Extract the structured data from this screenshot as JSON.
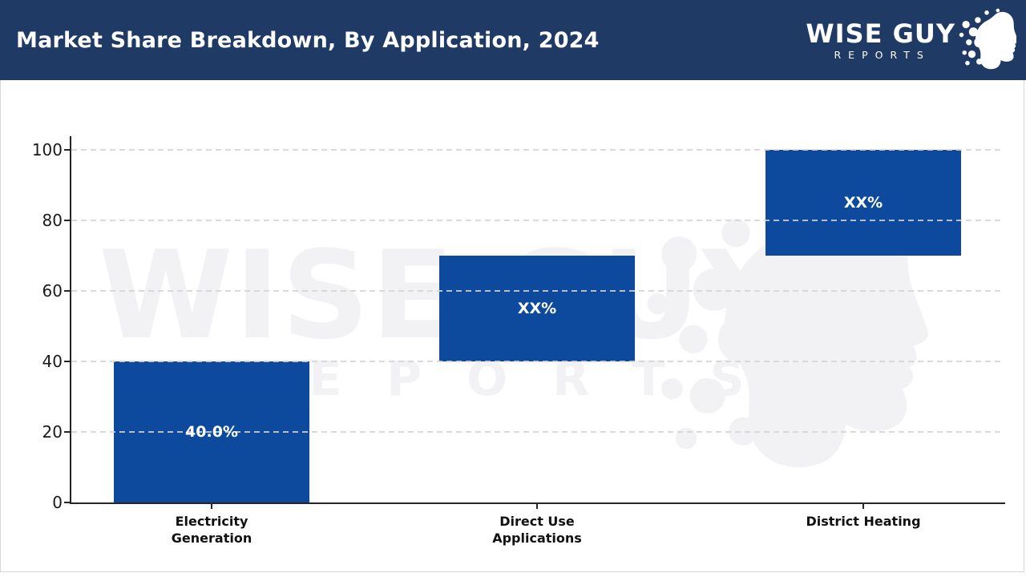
{
  "header": {
    "title": "Market Share Breakdown, By Application, 2024",
    "logo": {
      "line1": "WISE GUY",
      "line2": "REPORTS"
    }
  },
  "watermark": {
    "line1": "WISE GUY",
    "line2": "REPORTS"
  },
  "chart_data": {
    "type": "bar",
    "subtype": "floating-segment-bars",
    "title": "Market Share Breakdown, By Application, 2024",
    "categories": [
      "Electricity\nGeneration",
      "Direct Use\nApplications",
      "District Heating"
    ],
    "bars": [
      {
        "category": "Electricity Generation",
        "start": 0,
        "end": 40,
        "label": "40.0%"
      },
      {
        "category": "Direct Use Applications",
        "start": 40,
        "end": 70,
        "label": "XX%"
      },
      {
        "category": "District Heating",
        "start": 70,
        "end": 100,
        "label": "XX%"
      }
    ],
    "xlabel": "",
    "ylabel": "",
    "ylim": [
      0,
      100
    ],
    "yticks": [
      0,
      20,
      40,
      60,
      80,
      100
    ],
    "ytick_labels": [
      "0",
      "20",
      "40",
      "60",
      "80",
      "100"
    ],
    "grid": "horizontal-dashed",
    "legend": "none",
    "bar_color": "#0d4a9e"
  },
  "colors": {
    "header_bg": "#203a66",
    "bar": "#0d4a9e",
    "grid": "#d4d4d4",
    "axis": "#262626",
    "watermark": "#f2f2f4",
    "card_border": "#d6d6d6",
    "label_on_bar": "#ffffff",
    "title_text": "#ffffff"
  }
}
